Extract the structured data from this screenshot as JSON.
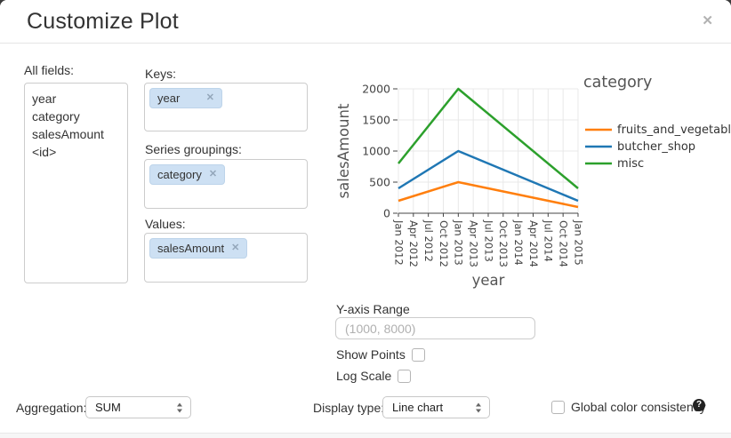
{
  "dialog": {
    "title": "Customize Plot",
    "close_glyph": "✕"
  },
  "fields_panel": {
    "label": "All fields:",
    "items": [
      "year",
      "category",
      "salesAmount",
      "<id>"
    ]
  },
  "mapping_panel": {
    "tag_remove_glyph": "✕",
    "keys": {
      "label": "Keys:",
      "tags": [
        "year"
      ]
    },
    "series_groupings": {
      "label": "Series groupings:",
      "tags": [
        "category"
      ]
    },
    "values": {
      "label": "Values:",
      "tags": [
        "salesAmount"
      ]
    }
  },
  "options": {
    "y_axis_range_label": "Y-axis Range",
    "y_axis_range_value": "",
    "y_axis_range_placeholder": "(1000, 8000)",
    "show_points_label": "Show Points",
    "show_points_checked": false,
    "log_scale_label": "Log Scale",
    "log_scale_checked": false
  },
  "footer_controls": {
    "aggregation_label": "Aggregation:",
    "aggregation_value": "SUM",
    "display_type_label": "Display type:",
    "display_type_value": "Line chart",
    "global_color_label": "Global color consistency",
    "global_color_checked": false,
    "help_glyph": "?"
  },
  "chart_data": {
    "type": "line",
    "legend_title": "category",
    "xlabel": "year",
    "ylabel": "salesAmount",
    "x_ticks": [
      "Jan 2012",
      "Apr 2012",
      "Jul 2012",
      "Oct 2012",
      "Jan 2013",
      "Apr 2013",
      "Jul 2013",
      "Oct 2013",
      "Jan 2014",
      "Apr 2014",
      "Jul 2014",
      "Oct 2014",
      "Jan 2015"
    ],
    "y_ticks": [
      0,
      500,
      1000,
      1500,
      2000
    ],
    "ylim": [
      0,
      2000
    ],
    "grid": true,
    "legend_position": "right",
    "series": [
      {
        "name": "fruits_and_vegetables",
        "color": "#ff7f0e",
        "points": [
          [
            "Jan 2012",
            200
          ],
          [
            "Jan 2013",
            500
          ],
          [
            "Jan 2015",
            100
          ]
        ]
      },
      {
        "name": "butcher_shop",
        "color": "#1f77b4",
        "points": [
          [
            "Jan 2012",
            400
          ],
          [
            "Jan 2013",
            1000
          ],
          [
            "Jan 2015",
            200
          ]
        ]
      },
      {
        "name": "misc",
        "color": "#2ca02c",
        "points": [
          [
            "Jan 2012",
            800
          ],
          [
            "Jan 2013",
            2000
          ],
          [
            "Jan 2015",
            400
          ]
        ]
      }
    ]
  }
}
